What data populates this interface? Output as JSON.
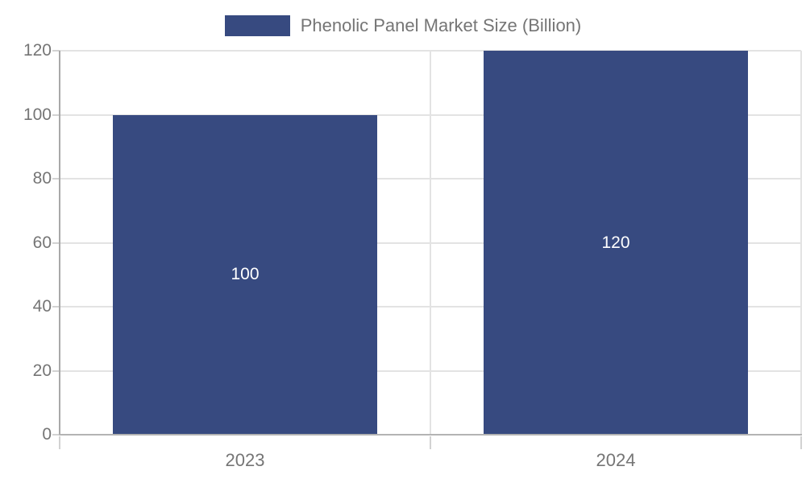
{
  "chart_data": {
    "type": "bar",
    "title": "Phenolic Panel Market Size (Billion)",
    "categories": [
      "2023",
      "2024"
    ],
    "values": [
      100,
      120
    ],
    "series": [
      {
        "name": "Phenolic Panel Market Size (Billion)",
        "values": [
          100,
          120
        ]
      }
    ],
    "bar_value_labels": [
      "100",
      "120"
    ],
    "xlabel": "",
    "ylabel": "",
    "ylim": [
      0,
      120
    ],
    "yticks": [
      0,
      20,
      40,
      60,
      80,
      100,
      120
    ],
    "grid": true,
    "legend_position": "top-center",
    "colors": {
      "bar": "#374A80",
      "bar_label": "#FFFFFF",
      "axis_text": "#757575",
      "legend_text": "#757575",
      "axis_line_y": "#A9A9A9",
      "axis_line_x": "#B3B3B3",
      "gridline": "#E3E3E3",
      "tick_mark": "#D2D2D2",
      "background": "#FFFFFF"
    }
  }
}
